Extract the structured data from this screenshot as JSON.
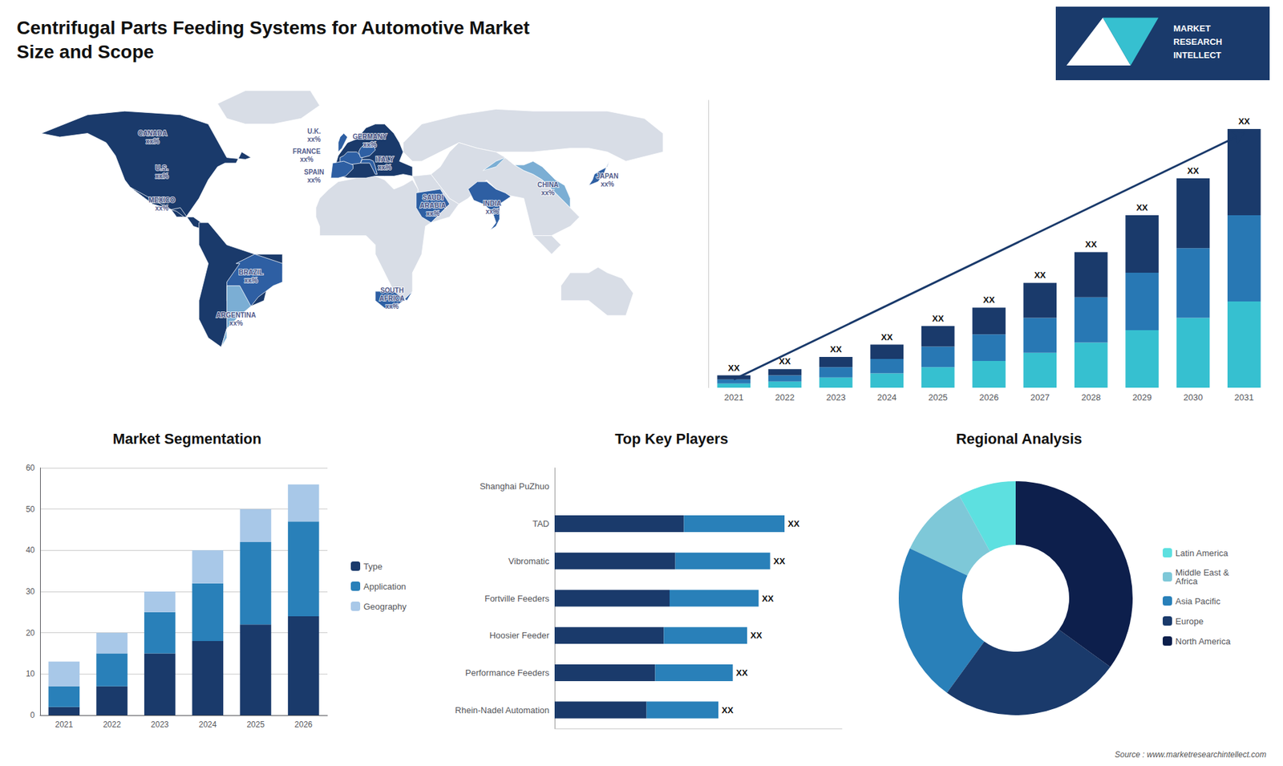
{
  "title": "Centrifugal Parts Feeding Systems for Automotive Market\nSize and Scope",
  "annotations": [
    "Source : www.marketresearchintellect.com",
    "MARKET\nRESEARCH\nINTELLECT"
  ],
  "chart_data": [
    {
      "type": "map",
      "categories": [
        "CANADA",
        "U.S.",
        "MEXICO",
        "BRAZIL",
        "ARGENTINA",
        "U.K.",
        "FRANCE",
        "SPAIN",
        "GERMANY",
        "ITALY",
        "SAUDI\nARABIA",
        "SOUTH\nAFRICA",
        "CHINA",
        "INDIA",
        "JAPAN"
      ],
      "value_labels": [
        "xx%",
        "xx%",
        "xx%",
        "xx%",
        "xx%",
        "xx%",
        "xx%",
        "xx%",
        "xx%",
        "xx%",
        "xx%",
        "xx%",
        "xx%",
        "xx%",
        "xx%"
      ],
      "xlim": [
        -180,
        180
      ],
      "ylim": [
        -70,
        85
      ],
      "tick_labels": false
    },
    {
      "type": "bar",
      "stacked": true,
      "categories": [
        "2021",
        "2022",
        "2023",
        "2024",
        "2025",
        "2026",
        "2027",
        "2028",
        "2029",
        "2030",
        "2031"
      ],
      "series": [
        {
          "color": "#36c0d0",
          "values": [
            1,
            1.5,
            2.5,
            3.5,
            5,
            6.5,
            8.5,
            11,
            14,
            17,
            21
          ]
        },
        {
          "color": "#2878b4",
          "values": [
            1,
            1.5,
            2.5,
            3.5,
            5,
            6.5,
            8.5,
            11,
            14,
            17,
            21
          ]
        },
        {
          "color": "#1a3a6b",
          "values": [
            1,
            1.5,
            2.5,
            3.5,
            5,
            6.5,
            8.5,
            11,
            14,
            17,
            21
          ],
          "value_labels": [
            "XX",
            "XX",
            "XX",
            "XX",
            "XX",
            "XX",
            "XX",
            "XX",
            "XX",
            "XX",
            "XX"
          ]
        },
        {
          "type": "line",
          "color": "#1a3a6b",
          "values": [
            2,
            null,
            null,
            null,
            null,
            null,
            null,
            null,
            null,
            null,
            62
          ]
        }
      ],
      "ylim": [
        0,
        70
      ],
      "grid": false,
      "tick_labels": "x"
    },
    {
      "type": "bar",
      "title": "Market Segmentation",
      "stacked": true,
      "categories": [
        "2021",
        "2022",
        "2023",
        "2024",
        "2025",
        "2026"
      ],
      "series": [
        {
          "name": "Type",
          "color": "#1a3a6b",
          "values": [
            2,
            7,
            15,
            18,
            22,
            24
          ]
        },
        {
          "name": "Application",
          "color": "#2980b9",
          "values": [
            5,
            8,
            10,
            14,
            20,
            23
          ]
        },
        {
          "name": "Geography",
          "color": "#a8c8e8",
          "values": [
            6,
            5,
            5,
            8,
            8,
            9
          ]
        }
      ],
      "ylim": [
        0,
        60
      ],
      "yticks": [
        0,
        10,
        20,
        30,
        40,
        50,
        60
      ],
      "grid": true,
      "legend": "right"
    },
    {
      "type": "bar",
      "title": "Top Key Players",
      "orientation": "horizontal",
      "stacked": true,
      "categories": [
        "Shanghai PuZhuo",
        "TAD",
        "Vibromatic",
        "Fortville Feeders",
        "Hoosier Feeder",
        "Performance Feeders",
        "Rhein-Nadel Automation"
      ],
      "series": [
        {
          "color": "#1a3a6b",
          "values": [
            0,
            4.5,
            4.2,
            4.0,
            3.8,
            3.5,
            3.2
          ]
        },
        {
          "color": "#2980b9",
          "values": [
            0,
            3.5,
            3.3,
            3.1,
            2.9,
            2.7,
            2.5
          ],
          "value_labels": [
            null,
            "XX",
            "XX",
            "XX",
            "XX",
            "XX",
            "XX"
          ]
        }
      ],
      "xlim": [
        0,
        10
      ],
      "grid": false,
      "tick_labels": "y"
    },
    {
      "type": "pie",
      "title": "Regional Analysis",
      "categories": [
        "Latin America",
        "Middle East &\nAfrica",
        "Asia Pacific",
        "Europe",
        "North America"
      ],
      "values": [
        8,
        10,
        22,
        25,
        35
      ],
      "colors": [
        "#5de0e0",
        "#7ec8d8",
        "#2980b9",
        "#1a3a6b",
        "#0d1f4c"
      ],
      "legend": "right"
    }
  ]
}
